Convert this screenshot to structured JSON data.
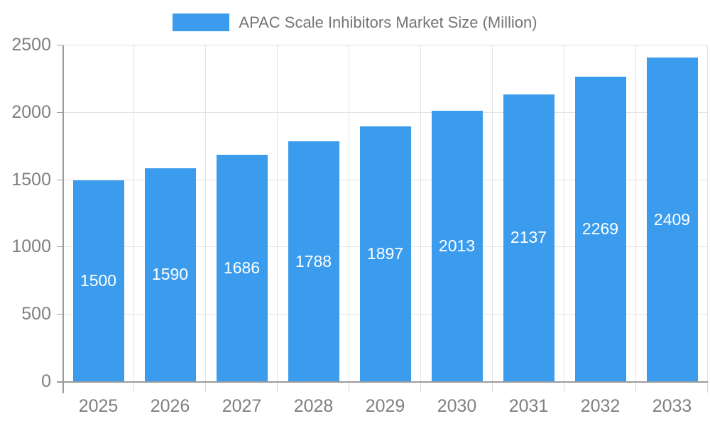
{
  "chart_data": {
    "type": "bar",
    "title": "APAC Scale Inhibitors Market Size (Million)",
    "legend": {
      "position": "top-center",
      "label": "APAC Scale Inhibitors Market Size (Million)"
    },
    "categories": [
      "2025",
      "2026",
      "2027",
      "2028",
      "2029",
      "2030",
      "2031",
      "2032",
      "2033"
    ],
    "series": [
      {
        "name": "APAC Scale Inhibitors Market Size (Million)",
        "values": [
          1500,
          1590,
          1686,
          1788,
          1897,
          2013,
          2137,
          2269,
          2409
        ]
      }
    ],
    "value_labels_shown": true,
    "xlabel": "",
    "ylabel": "",
    "ylim": [
      0,
      2500
    ],
    "yticks": [
      0,
      500,
      1000,
      1500,
      2000,
      2500
    ],
    "grid": true,
    "colors": {
      "bar": "#3B9CEE",
      "value_label_text": "#FFFFFF",
      "tick_label_text": "#808080",
      "legend_text": "#757575",
      "gridline": "#E3E3E3",
      "axis_line": "#9B9B9B",
      "boundary_tick": "#D6D6D6",
      "background": "#FFFFFF"
    }
  }
}
